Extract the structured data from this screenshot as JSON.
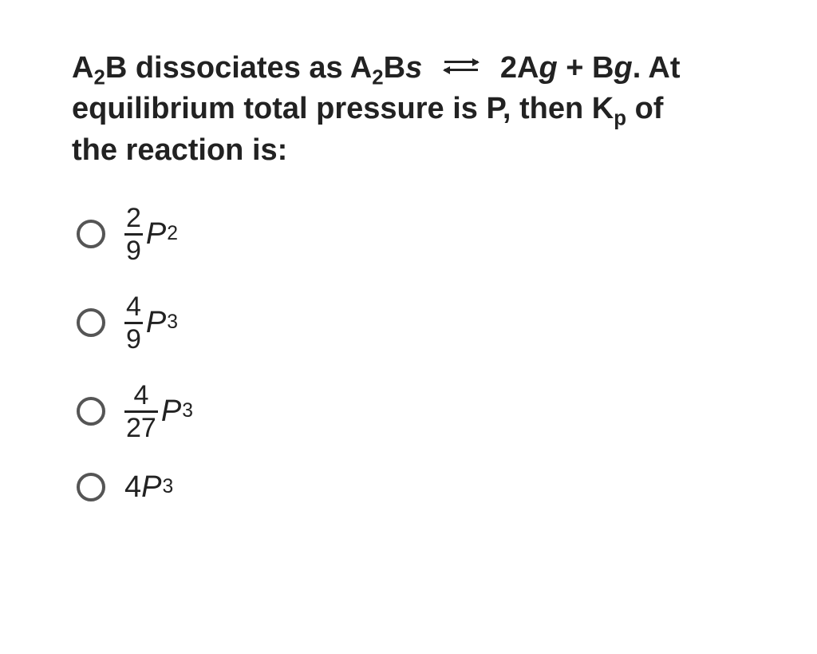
{
  "question": {
    "line1_pre": "A",
    "line1_sub1": "2",
    "line1_mid1": "B dissociates as A",
    "line1_sub2": "2",
    "line1_mid2": "B",
    "line1_state1": "s",
    "line1_rhs_coef": "2A",
    "line1_rhs_state1": "g",
    "line1_plus": " + B",
    "line1_rhs_state2": "g",
    "line1_end": ". At",
    "line2_a": "equilibrium total pressure is P, then K",
    "line2_sub": "p",
    "line2_b": " of",
    "line3": "the reaction is:",
    "colors": {
      "text": "#222222",
      "radio_border": "#555555",
      "background": "#ffffff"
    },
    "fontsize_question": 38,
    "fontsize_option": 38
  },
  "options": [
    {
      "num": "2",
      "den": "9",
      "var": "P",
      "exp": "2",
      "has_frac": true
    },
    {
      "num": "4",
      "den": "9",
      "var": "P",
      "exp": "3",
      "has_frac": true
    },
    {
      "num": "4",
      "den": "27",
      "var": "P",
      "exp": "3",
      "has_frac": true
    },
    {
      "coef": "4",
      "var": "P",
      "exp": "3",
      "has_frac": false
    }
  ]
}
